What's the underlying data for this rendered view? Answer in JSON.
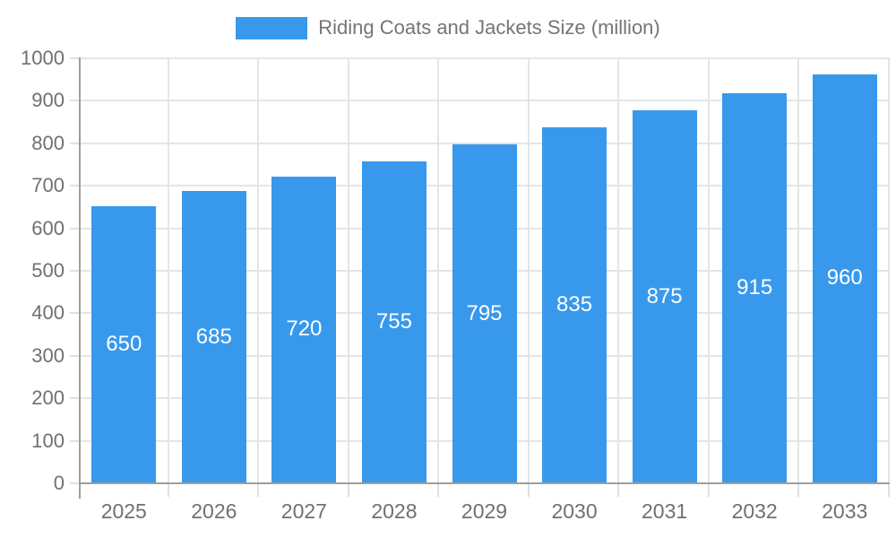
{
  "legend": {
    "label": "Riding Coats and Jackets Size (million)",
    "swatch_color": "#3899EC"
  },
  "chart_data": {
    "type": "bar",
    "title": "Riding Coats and Jackets Size (million)",
    "categories": [
      "2025",
      "2026",
      "2027",
      "2028",
      "2029",
      "2030",
      "2031",
      "2032",
      "2033"
    ],
    "values": [
      650,
      685,
      720,
      755,
      795,
      835,
      875,
      915,
      960
    ],
    "bar_labels": [
      "650",
      "685",
      "720",
      "755",
      "795",
      "835",
      "875",
      "915",
      "960"
    ],
    "xlabel": "",
    "ylabel": "",
    "ylim": [
      0,
      1000
    ],
    "yticks": [
      0,
      100,
      200,
      300,
      400,
      500,
      600,
      700,
      800,
      900,
      1000
    ],
    "grid": true,
    "legend_position": "top",
    "colors": {
      "bar": "#3899EC",
      "bar_label_text": "#ffffff",
      "grid": "#E5E5E5",
      "axis": "#9E9E9E",
      "tick_text": "#707070",
      "legend_text": "#757575"
    }
  }
}
